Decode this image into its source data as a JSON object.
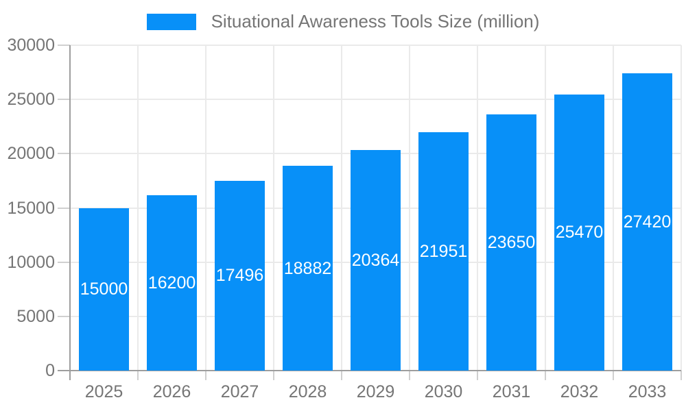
{
  "chart_data": {
    "type": "bar",
    "title": "",
    "legend": {
      "label": "Situational Awareness Tools Size (million)",
      "position": "top"
    },
    "categories": [
      "2025",
      "2026",
      "2027",
      "2028",
      "2029",
      "2030",
      "2031",
      "2032",
      "2033"
    ],
    "series": [
      {
        "name": "Situational Awareness Tools Size (million)",
        "values": [
          15000,
          16200,
          17496,
          18882,
          20364,
          21951,
          23650,
          25470,
          27420
        ]
      }
    ],
    "xlabel": "",
    "ylabel": "",
    "ylim": [
      0,
      30000
    ],
    "ytick_step": 5000,
    "ytick_labels": [
      "0",
      "5000",
      "10000",
      "15000",
      "20000",
      "25000",
      "30000"
    ],
    "grid": true,
    "value_labels": {
      "position": "inside-center",
      "color": "#FFFFFF"
    },
    "colors": {
      "bar": "#0890F8",
      "axis_text": "#757575",
      "gridline": "#EAEAEA",
      "axis_line": "#9E9E9E",
      "tick": "#D0D0D0",
      "background": "#FFFFFF"
    }
  }
}
